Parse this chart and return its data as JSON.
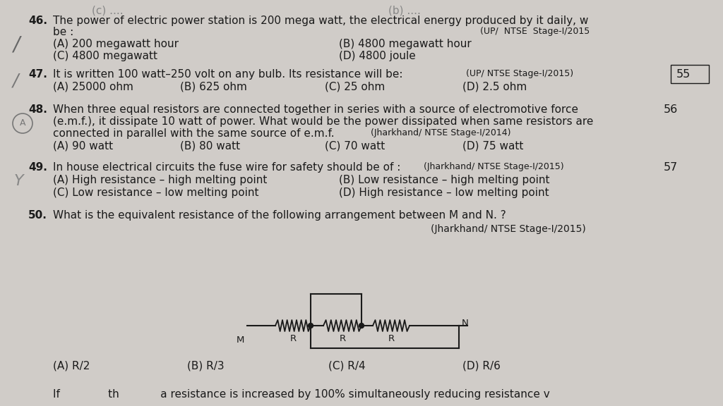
{
  "bg_color": "#d0ccc8",
  "text_color": "#1a1a1a",
  "title_46": "The power of electric power station is 200 mega watt, the electrical energy produced by it daily, w",
  "line_46b": "be :",
  "ref_46": "(UP/  NTSE  Stage-I/2015",
  "opt_46A": "(A) 200 megawatt hour",
  "opt_46B": "(B) 4800 megawatt hour",
  "opt_46C": "(C) 4800 megawatt",
  "opt_46D": "(D) 4800 joule",
  "title_47": "It is written 100 watt–250 volt on any bulb. Its resistance will be:",
  "ref_47": "(UP/ NTSE Stage-I/2015)",
  "num_47": "55",
  "opt_47A": "(A) 25000 ohm",
  "opt_47B": "(B) 625 ohm",
  "opt_47C": "(C) 25 ohm",
  "opt_47D": "(D) 2.5 ohm",
  "title_48": "When three equal resistors are connected together in series with a source of electromotive force",
  "line_48b": "(e.m.f.), it dissipate 10 watt of power. What would be the power dissipated when same resistors are",
  "line_48c": "connected in parallel with the same source of e.m.f.",
  "ref_48": "(Jharkhand/ NTSE Stage-I/2014)",
  "num_48": "56",
  "opt_48A": "(A) 90 watt",
  "opt_48B": "(B) 80 watt",
  "opt_48C": "(C) 70 watt",
  "opt_48D": "(D) 75 watt",
  "title_49": "In house electrical circuits the fuse wire for safety should be of :",
  "ref_49": "(Jharkhand/ NTSE Stage-I/2015)",
  "num_49": "57",
  "opt_49A": "(A) High resistance – high melting point",
  "opt_49B": "(B) Low resistance – high melting point",
  "opt_49C": "(C) Low resistance – low melting point",
  "opt_49D": "(D) High resistance – low melting point",
  "title_50": "What is the equivalent resistance of the following arrangement between M and N. ?",
  "ref_50": "(Jharkhand/ NTSE Stage-I/2015)",
  "opt_50A": "(A) R/2",
  "opt_50B": "(B) R/3",
  "opt_50C": "(C) R/4",
  "opt_50D": "(D) R/6",
  "bottom_text": "If              th            a resistance is increased by 100% simultaneously reducing resistance v",
  "font_main": 11.0,
  "font_ref": 9.0,
  "font_num": 11.5,
  "col_line": "#1a1a1a"
}
